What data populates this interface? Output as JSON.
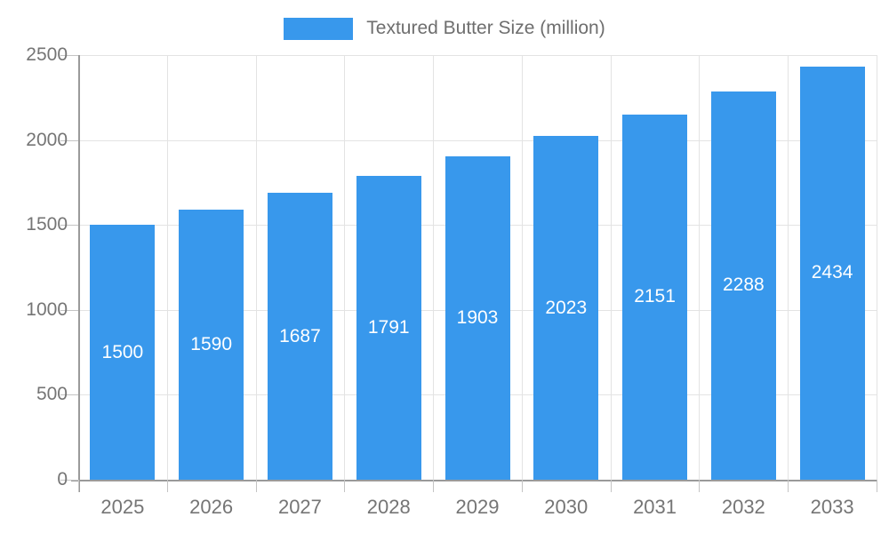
{
  "legend": {
    "label": "Textured Butter Size (million)"
  },
  "chart_data": {
    "type": "bar",
    "title": "",
    "xlabel": "",
    "ylabel": "",
    "categories": [
      "2025",
      "2026",
      "2027",
      "2028",
      "2029",
      "2030",
      "2031",
      "2032",
      "2033"
    ],
    "series": [
      {
        "name": "Textured Butter Size (million)",
        "values": [
          1500,
          1590,
          1687,
          1791,
          1903,
          2023,
          2151,
          2288,
          2434
        ]
      }
    ],
    "ylim": [
      0,
      2500
    ],
    "yticks": [
      0,
      500,
      1000,
      1500,
      2000,
      2500
    ],
    "grid": true,
    "legend_position": "top-center",
    "bar_labels_shown": true
  },
  "colors": {
    "bar": "#3898ec",
    "bar_label": "#ffffff",
    "gridline": "#e3e3e3",
    "axis_line": "#9a9a9a",
    "tick_text": "#757575",
    "legend_text": "#6e6e6e",
    "background": "#ffffff"
  }
}
